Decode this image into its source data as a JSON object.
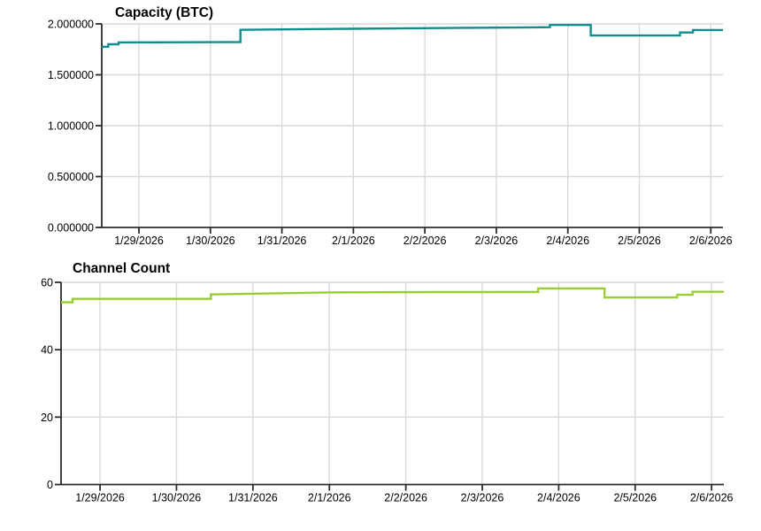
{
  "app": {
    "description_visible": false
  },
  "colors": {
    "background": "#ffffff",
    "axis": "#2b2b2b",
    "grid": "#d9d9d9",
    "text": "#000000",
    "capacity_line": "#0f8e8e",
    "channel_line": "#9acd32"
  },
  "chart_data": [
    {
      "type": "line",
      "title": "Capacity (BTC)",
      "xlabel": "",
      "ylabel": "",
      "grid": true,
      "legend": "none",
      "x": {
        "unit": "days (0 = 1/29/2026 00:00)",
        "min": -0.52,
        "max": 8.17,
        "tick_values": [
          0,
          1,
          2,
          3,
          4,
          5,
          6,
          7,
          8
        ],
        "tick_labels": [
          "1/29/2026",
          "1/30/2026",
          "1/31/2026",
          "2/1/2026",
          "2/2/2026",
          "2/3/2026",
          "2/4/2026",
          "2/5/2026",
          "2/6/2026"
        ]
      },
      "y": {
        "min": 0,
        "max": 2,
        "tick_values": [
          0,
          0.5,
          1.0,
          1.5,
          2.0
        ],
        "tick_labels": [
          "0.000000",
          "0.500000",
          "1.000000",
          "1.500000",
          "2.000000"
        ]
      },
      "series": [
        {
          "name": "Capacity (BTC)",
          "color": "#0f8e8e",
          "points": [
            [
              -0.52,
              1.762
            ],
            [
              -0.5,
              1.776
            ],
            [
              -0.43,
              1.776
            ],
            [
              -0.43,
              1.8
            ],
            [
              -0.285,
              1.8
            ],
            [
              -0.285,
              1.818
            ],
            [
              1.42,
              1.822
            ],
            [
              1.42,
              1.942
            ],
            [
              2.5,
              1.95
            ],
            [
              4.0,
              1.958
            ],
            [
              5.5,
              1.966
            ],
            [
              5.75,
              1.968
            ],
            [
              5.75,
              1.99
            ],
            [
              6.32,
              1.99
            ],
            [
              6.32,
              1.886
            ],
            [
              7.57,
              1.886
            ],
            [
              7.57,
              1.916
            ],
            [
              7.75,
              1.916
            ],
            [
              7.75,
              1.94
            ],
            [
              8.17,
              1.94
            ]
          ]
        }
      ]
    },
    {
      "type": "line",
      "title": "Channel Count",
      "xlabel": "",
      "ylabel": "",
      "grid": true,
      "legend": "none",
      "x": {
        "unit": "days (0 = 1/29/2026 00:00)",
        "min": -0.51,
        "max": 8.16,
        "tick_values": [
          0,
          1,
          2,
          3,
          4,
          5,
          6,
          7,
          8
        ],
        "tick_labels": [
          "1/29/2026",
          "1/30/2026",
          "1/31/2026",
          "2/1/2026",
          "2/2/2026",
          "2/3/2026",
          "2/4/2026",
          "2/5/2026",
          "2/6/2026"
        ]
      },
      "y": {
        "min": 0,
        "max": 60,
        "tick_values": [
          0,
          20,
          40,
          60
        ],
        "tick_labels": [
          "0",
          "20",
          "40",
          "60"
        ]
      },
      "series": [
        {
          "name": "Channel Count",
          "color": "#9acd32",
          "points": [
            [
              -0.51,
              54.1
            ],
            [
              -0.36,
              54.1
            ],
            [
              -0.36,
              55.1
            ],
            [
              1.45,
              55.1
            ],
            [
              1.45,
              56.4
            ],
            [
              2.2,
              56.7
            ],
            [
              3.0,
              57.0
            ],
            [
              4.5,
              57.1
            ],
            [
              5.73,
              57.15
            ],
            [
              5.73,
              58.2
            ],
            [
              6.6,
              58.2
            ],
            [
              6.6,
              55.5
            ],
            [
              7.55,
              55.5
            ],
            [
              7.55,
              56.3
            ],
            [
              7.75,
              56.3
            ],
            [
              7.75,
              57.2
            ],
            [
              8.16,
              57.2
            ]
          ]
        }
      ]
    }
  ]
}
